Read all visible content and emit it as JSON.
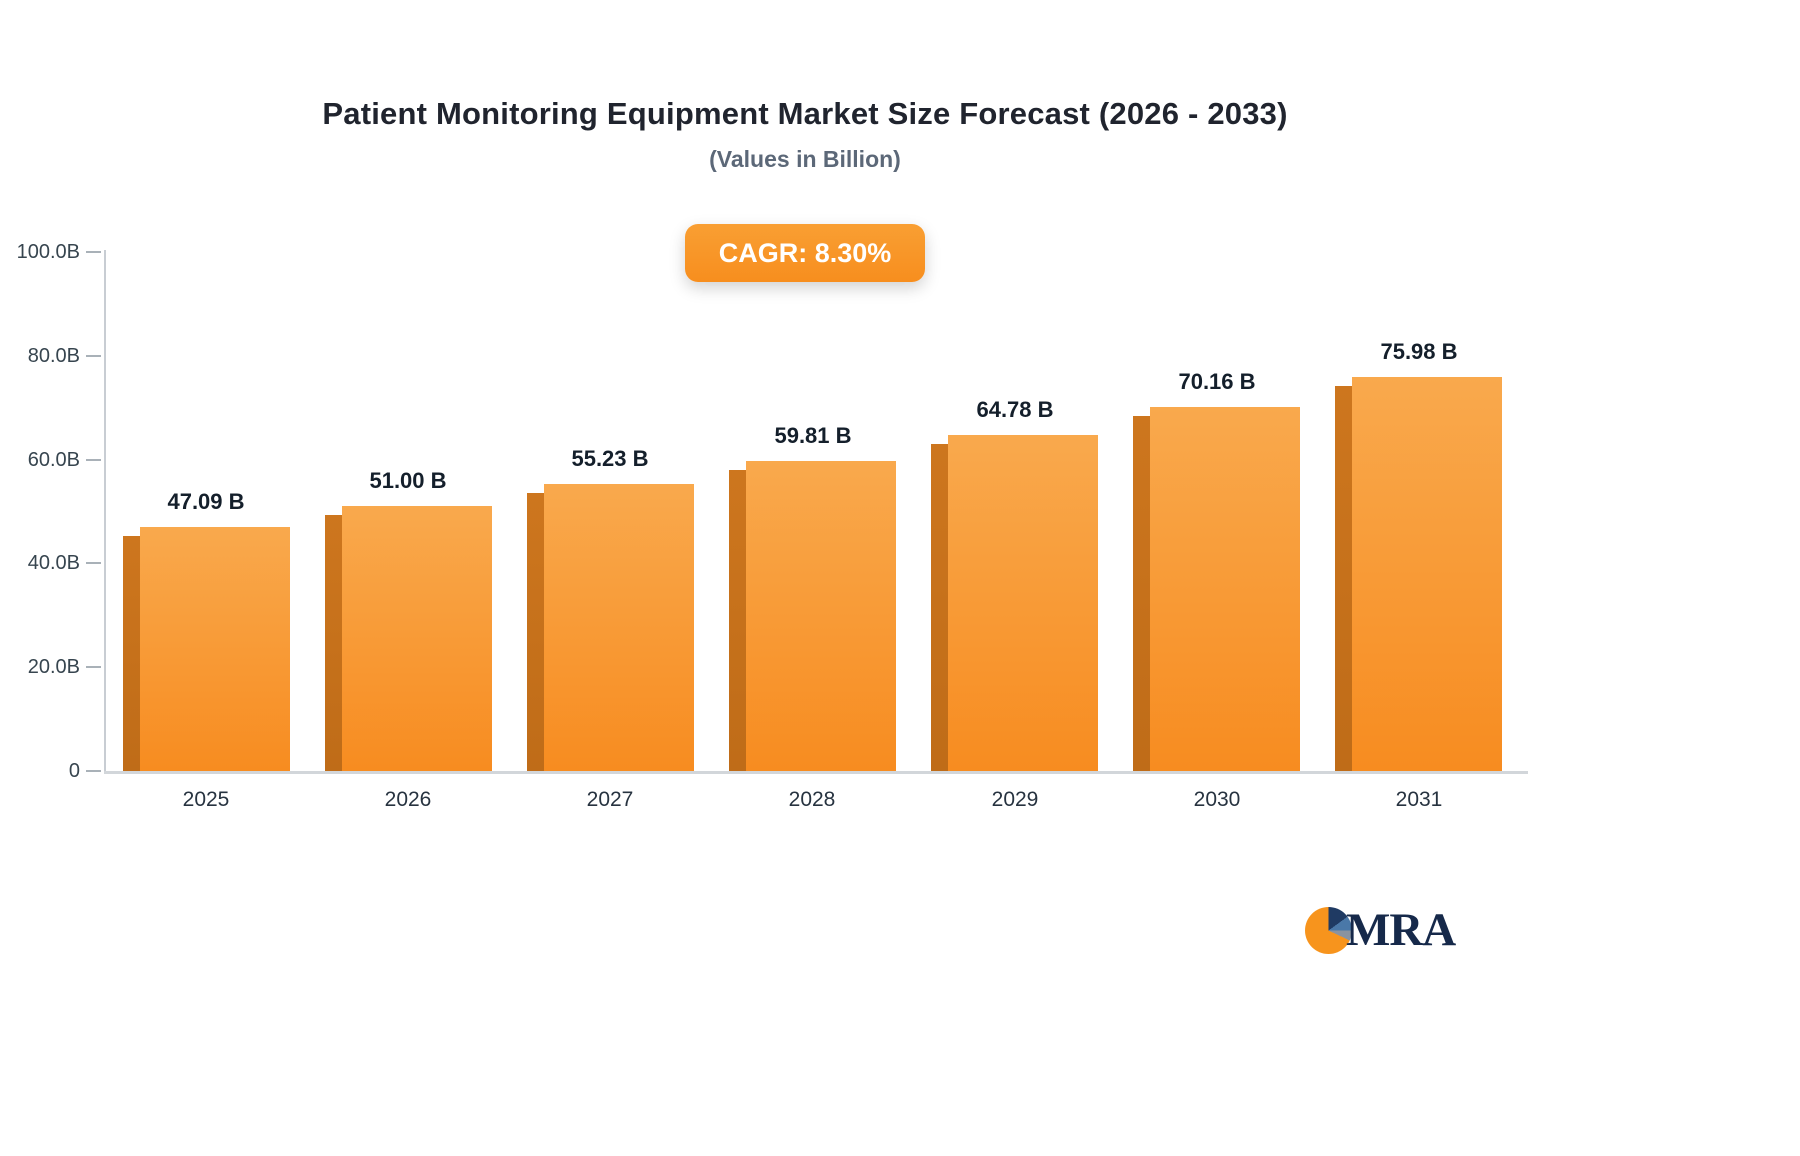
{
  "header": {
    "title": "Patient Monitoring Equipment Market Size Forecast (2026 - 2033)",
    "subtitle": "(Values in Billion)",
    "cagr_badge": "CAGR: 8.30%"
  },
  "logo": {
    "text": "MRA",
    "icon": "pie-logo-icon"
  },
  "colors": {
    "bar_top": "#f9a94d",
    "bar_bottom": "#f78c20",
    "bar_side": "#c8721c",
    "badge": "#f78e1e",
    "title_text": "#20242e",
    "subtitle_text": "#5c6878",
    "axis_line": "#c8cdd3"
  },
  "chart_data": {
    "type": "bar",
    "title": "Patient Monitoring Equipment Market Size Forecast (2026 - 2033)",
    "subtitle": "(Values in Billion)",
    "annotation": "CAGR: 8.30%",
    "categories": [
      "2025",
      "2026",
      "2027",
      "2028",
      "2029",
      "2030",
      "2031"
    ],
    "values": [
      47.09,
      51.0,
      55.23,
      59.81,
      64.78,
      70.16,
      75.98
    ],
    "value_labels": [
      "47.09 B",
      "51.00 B",
      "55.23 B",
      "59.81 B",
      "64.78 B",
      "70.16 B",
      "75.98 B"
    ],
    "xlabel": "",
    "ylabel": "",
    "ylim": [
      0,
      100
    ],
    "grid": false,
    "legend": "none",
    "y_ticks": [
      {
        "value": 100,
        "label": "100.0B"
      },
      {
        "value": 80,
        "label": "80.0B"
      },
      {
        "value": 60,
        "label": "60.0B"
      },
      {
        "value": 40,
        "label": "40.0B"
      },
      {
        "value": 20,
        "label": "20.0B"
      },
      {
        "value": 0,
        "label": "0"
      }
    ]
  }
}
